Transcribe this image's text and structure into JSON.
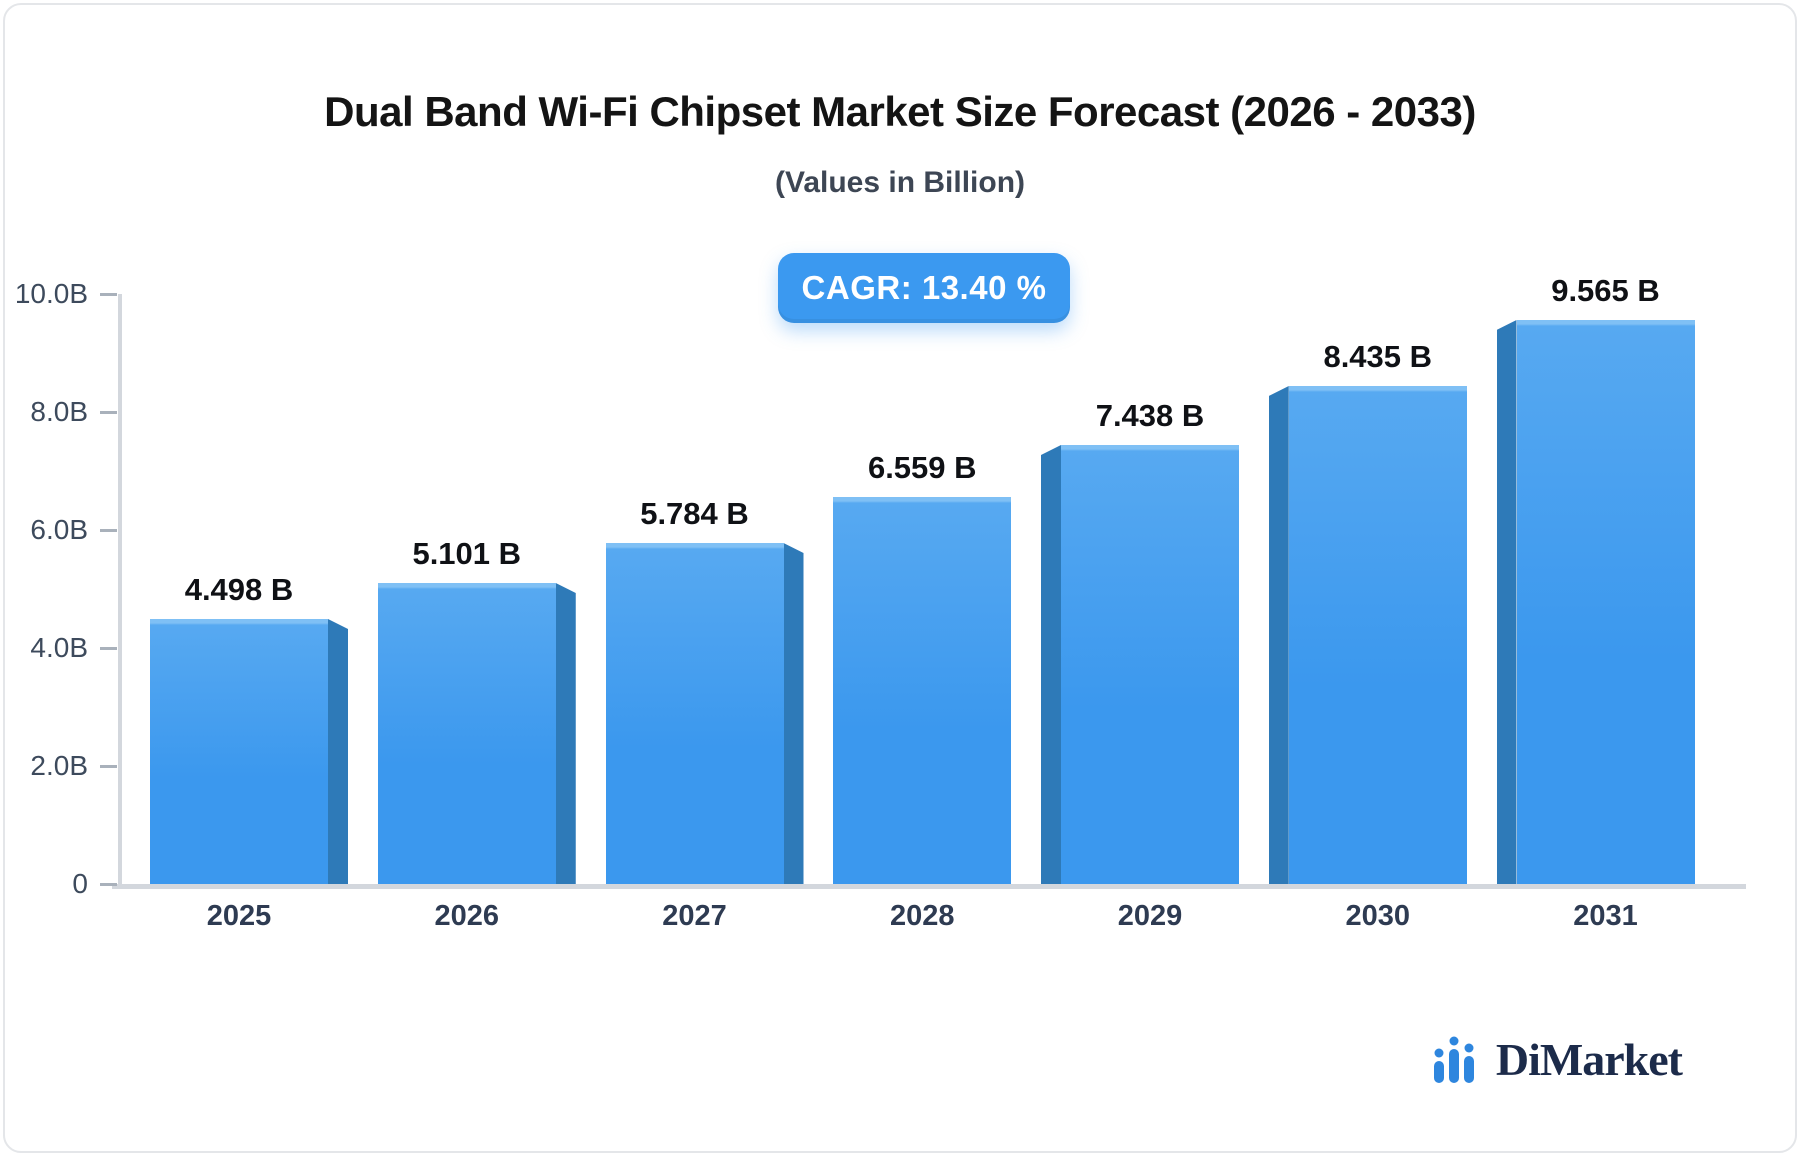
{
  "chart_data": {
    "type": "bar",
    "title": "Dual Band Wi-Fi Chipset Market Size Forecast (2026 - 2033)",
    "subtitle": "(Values in Billion)",
    "annotation": "CAGR: 13.40 %",
    "categories": [
      "2025",
      "2026",
      "2027",
      "2028",
      "2029",
      "2030",
      "2031"
    ],
    "values": [
      4.498,
      5.101,
      5.784,
      6.559,
      7.438,
      8.435,
      9.565
    ],
    "bar_labels": [
      "4.498 B",
      "5.101 B",
      "5.784 B",
      "6.559 B",
      "7.438 B",
      "8.435 B",
      "9.565 B"
    ],
    "unit": "Billion",
    "ylim": [
      0,
      10
    ],
    "yticks": [
      {
        "label": "10.0B",
        "value": 10
      },
      {
        "label": "8.0B",
        "value": 8
      },
      {
        "label": "6.0B",
        "value": 6
      },
      {
        "label": "4.0B",
        "value": 4
      },
      {
        "label": "2.0B",
        "value": 2
      },
      {
        "label": "0",
        "value": 0
      }
    ],
    "grid": false,
    "legend_position": "none",
    "colors": {
      "bar_face_highlight": "#7fc0f5",
      "bar_face_top": "#57a9f1",
      "bar_face_bottom": "#3b98ee",
      "bar_side": "#2e7ab8",
      "axis": "#d3d7dd",
      "tick_label": "#3d4a5c",
      "value_label": "#0f1115",
      "category_label": "#2e3b52",
      "badge_bg": "#3b99f0",
      "badge_text": "#ffffff"
    }
  },
  "footer": {
    "brand": "DiMarket"
  }
}
